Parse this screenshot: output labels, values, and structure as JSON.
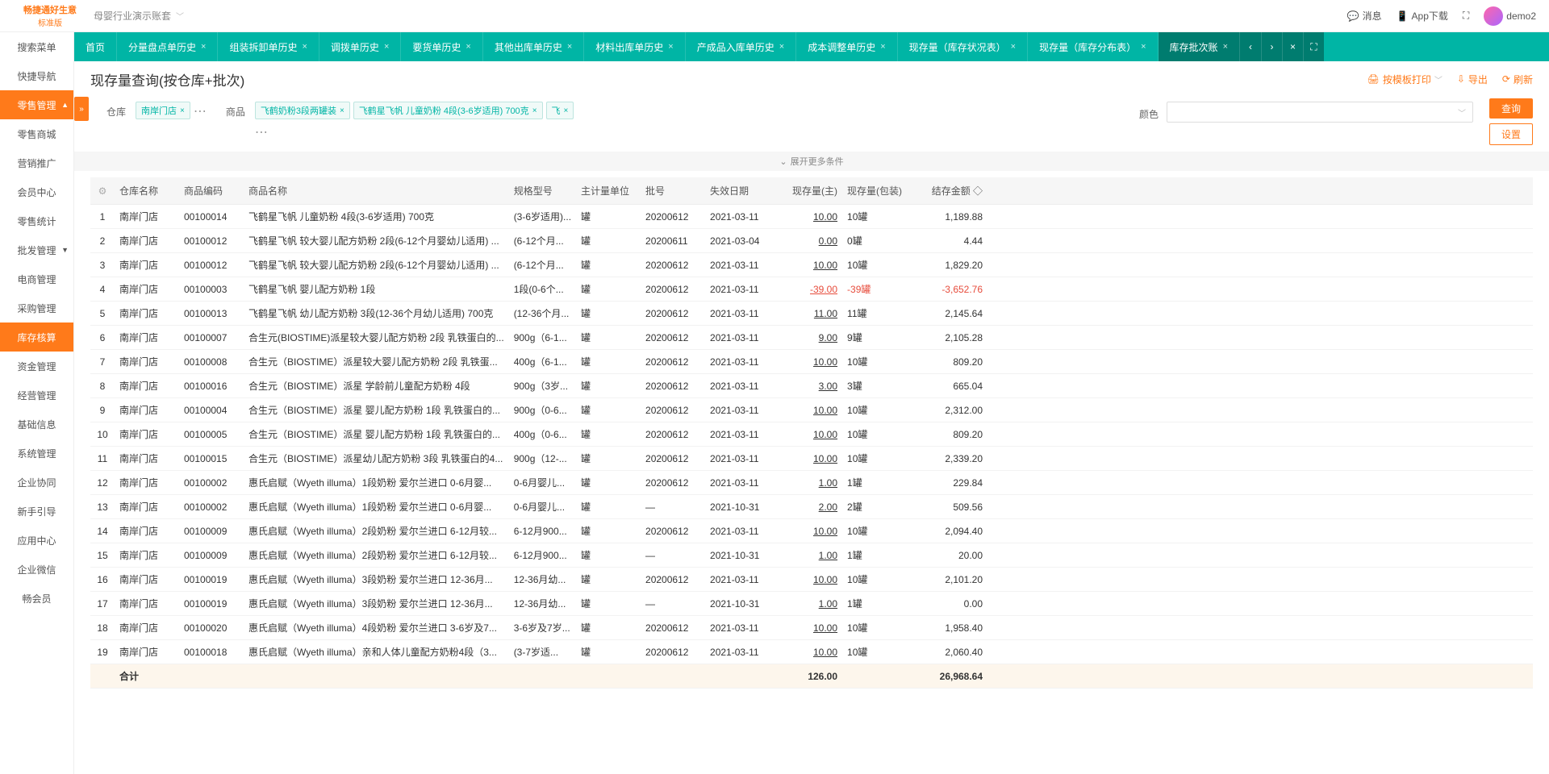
{
  "top": {
    "brand_line1": "畅捷通好生意",
    "brand_line2": "标准版",
    "account": "母婴行业演示账套",
    "msg": "消息",
    "app": "App下载",
    "user": "demo2"
  },
  "sidebar": [
    {
      "label": "搜索菜单",
      "k": "search"
    },
    {
      "label": "快捷导航",
      "k": "quick"
    },
    {
      "label": "零售管理",
      "k": "retail",
      "active": true,
      "caret": "▲"
    },
    {
      "label": "零售商城",
      "k": "mall",
      "sub": true
    },
    {
      "label": "营销推广",
      "k": "promo",
      "sub": true
    },
    {
      "label": "会员中心",
      "k": "member",
      "sub": true
    },
    {
      "label": "零售统计",
      "k": "stat",
      "sub": true
    },
    {
      "label": "批发管理",
      "k": "wholesale",
      "caret": "▼"
    },
    {
      "label": "电商管理",
      "k": "ecom"
    },
    {
      "label": "采购管理",
      "k": "purchase"
    },
    {
      "label": "库存核算",
      "k": "inv",
      "active": true
    },
    {
      "label": "资金管理",
      "k": "fund"
    },
    {
      "label": "经营管理",
      "k": "biz"
    },
    {
      "label": "基础信息",
      "k": "base"
    },
    {
      "label": "系统管理",
      "k": "sys"
    },
    {
      "label": "企业协同",
      "k": "corp"
    },
    {
      "label": "新手引导",
      "k": "guide"
    },
    {
      "label": "应用中心",
      "k": "apps"
    },
    {
      "label": "企业微信",
      "k": "wecom"
    },
    {
      "label": "畅会员",
      "k": "vip"
    }
  ],
  "tabs": [
    {
      "label": "首页",
      "closable": false
    },
    {
      "label": "分量盘点单历史",
      "closable": true
    },
    {
      "label": "组装拆卸单历史",
      "closable": true
    },
    {
      "label": "调拨单历史",
      "closable": true
    },
    {
      "label": "要货单历史",
      "closable": true
    },
    {
      "label": "其他出库单历史",
      "closable": true
    },
    {
      "label": "材料出库单历史",
      "closable": true
    },
    {
      "label": "产成品入库单历史",
      "closable": true
    },
    {
      "label": "成本调整单历史",
      "closable": true
    },
    {
      "label": "现存量（库存状况表）",
      "closable": true
    },
    {
      "label": "现存量（库存分布表）",
      "closable": true
    },
    {
      "label": "库存批次账",
      "closable": true,
      "active": true
    }
  ],
  "page": {
    "title": "现存量查询(按仓库+批次)",
    "print": "按模板打印",
    "export": "导出",
    "refresh": "刷新"
  },
  "filter": {
    "wh_label": "仓库",
    "wh_chip": "南岸门店",
    "goods_label": "商品",
    "goods_chips": [
      "飞鹤奶粉3段两罐装",
      "飞鹤星飞帆 儿童奶粉 4段(3-6岁适用) 700克",
      "飞"
    ],
    "color_label": "颜色",
    "query": "查询",
    "setting": "设置",
    "expand": "展开更多条件"
  },
  "cols": [
    "",
    "仓库名称",
    "商品编码",
    "商品名称",
    "规格型号",
    "主计量单位",
    "批号",
    "失效日期",
    "现存量(主)",
    "现存量(包装)",
    "结存金额"
  ],
  "rows": [
    {
      "i": 1,
      "wh": "南岸门店",
      "code": "00100014",
      "name": "飞鹤星飞帆 儿童奶粉 4段(3-6岁适用) 700克",
      "spec": "(3-6岁适用)...",
      "unit": "罐",
      "batch": "20200612",
      "exp": "2021-03-11",
      "qty": "10.00",
      "pkg": "10罐",
      "amt": "1,189.88"
    },
    {
      "i": 2,
      "wh": "南岸门店",
      "code": "00100012",
      "name": "飞鹤星飞帆 较大婴儿配方奶粉 2段(6-12个月婴幼儿适用) ...",
      "spec": "(6-12个月...",
      "unit": "罐",
      "batch": "20200611",
      "exp": "2021-03-04",
      "qty": "0.00",
      "pkg": "0罐",
      "amt": "4.44"
    },
    {
      "i": 3,
      "wh": "南岸门店",
      "code": "00100012",
      "name": "飞鹤星飞帆 较大婴儿配方奶粉 2段(6-12个月婴幼儿适用) ...",
      "spec": "(6-12个月...",
      "unit": "罐",
      "batch": "20200612",
      "exp": "2021-03-11",
      "qty": "10.00",
      "pkg": "10罐",
      "amt": "1,829.20"
    },
    {
      "i": 4,
      "wh": "南岸门店",
      "code": "00100003",
      "name": "飞鹤星飞帆 婴儿配方奶粉 1段",
      "spec": "1段(0-6个...",
      "unit": "罐",
      "batch": "20200612",
      "exp": "2021-03-11",
      "qty": "-39.00",
      "pkg": "-39罐",
      "amt": "-3,652.76",
      "neg": true
    },
    {
      "i": 5,
      "wh": "南岸门店",
      "code": "00100013",
      "name": "飞鹤星飞帆 幼儿配方奶粉 3段(12-36个月幼儿适用) 700克",
      "spec": "(12-36个月...",
      "unit": "罐",
      "batch": "20200612",
      "exp": "2021-03-11",
      "qty": "11.00",
      "pkg": "11罐",
      "amt": "2,145.64"
    },
    {
      "i": 6,
      "wh": "南岸门店",
      "code": "00100007",
      "name": "合生元(BIOSTIME)派星较大婴儿配方奶粉 2段 乳铁蛋白的...",
      "spec": "900g（6-1...",
      "unit": "罐",
      "batch": "20200612",
      "exp": "2021-03-11",
      "qty": "9.00",
      "pkg": "9罐",
      "amt": "2,105.28"
    },
    {
      "i": 7,
      "wh": "南岸门店",
      "code": "00100008",
      "name": "合生元（BIOSTIME）派星较大婴儿配方奶粉 2段 乳铁蛋...",
      "spec": "400g（6-1...",
      "unit": "罐",
      "batch": "20200612",
      "exp": "2021-03-11",
      "qty": "10.00",
      "pkg": "10罐",
      "amt": "809.20"
    },
    {
      "i": 8,
      "wh": "南岸门店",
      "code": "00100016",
      "name": "合生元（BIOSTIME）派星 学龄前儿童配方奶粉 4段",
      "spec": "900g（3岁...",
      "unit": "罐",
      "batch": "20200612",
      "exp": "2021-03-11",
      "qty": "3.00",
      "pkg": "3罐",
      "amt": "665.04"
    },
    {
      "i": 9,
      "wh": "南岸门店",
      "code": "00100004",
      "name": "合生元（BIOSTIME）派星 婴儿配方奶粉 1段 乳铁蛋白的...",
      "spec": "900g（0-6...",
      "unit": "罐",
      "batch": "20200612",
      "exp": "2021-03-11",
      "qty": "10.00",
      "pkg": "10罐",
      "amt": "2,312.00"
    },
    {
      "i": 10,
      "wh": "南岸门店",
      "code": "00100005",
      "name": "合生元（BIOSTIME）派星 婴儿配方奶粉 1段 乳铁蛋白的...",
      "spec": "400g（0-6...",
      "unit": "罐",
      "batch": "20200612",
      "exp": "2021-03-11",
      "qty": "10.00",
      "pkg": "10罐",
      "amt": "809.20"
    },
    {
      "i": 11,
      "wh": "南岸门店",
      "code": "00100015",
      "name": "合生元（BIOSTIME）派星幼儿配方奶粉 3段 乳铁蛋白的4...",
      "spec": "900g（12-...",
      "unit": "罐",
      "batch": "20200612",
      "exp": "2021-03-11",
      "qty": "10.00",
      "pkg": "10罐",
      "amt": "2,339.20"
    },
    {
      "i": 12,
      "wh": "南岸门店",
      "code": "00100002",
      "name": "惠氏启赋（Wyeth illuma）1段奶粉 爱尔兰进口 0-6月婴...",
      "spec": "0-6月婴儿...",
      "unit": "罐",
      "batch": "20200612",
      "exp": "2021-03-11",
      "qty": "1.00",
      "pkg": "1罐",
      "amt": "229.84"
    },
    {
      "i": 13,
      "wh": "南岸门店",
      "code": "00100002",
      "name": "惠氏启赋（Wyeth illuma）1段奶粉 爱尔兰进口 0-6月婴...",
      "spec": "0-6月婴儿...",
      "unit": "罐",
      "batch": "—",
      "exp": "2021-10-31",
      "qty": "2.00",
      "pkg": "2罐",
      "amt": "509.56"
    },
    {
      "i": 14,
      "wh": "南岸门店",
      "code": "00100009",
      "name": "惠氏启赋（Wyeth illuma）2段奶粉 爱尔兰进口 6-12月较...",
      "spec": "6-12月900...",
      "unit": "罐",
      "batch": "20200612",
      "exp": "2021-03-11",
      "qty": "10.00",
      "pkg": "10罐",
      "amt": "2,094.40"
    },
    {
      "i": 15,
      "wh": "南岸门店",
      "code": "00100009",
      "name": "惠氏启赋（Wyeth illuma）2段奶粉 爱尔兰进口 6-12月较...",
      "spec": "6-12月900...",
      "unit": "罐",
      "batch": "—",
      "exp": "2021-10-31",
      "qty": "1.00",
      "pkg": "1罐",
      "amt": "20.00"
    },
    {
      "i": 16,
      "wh": "南岸门店",
      "code": "00100019",
      "name": "惠氏启赋（Wyeth illuma）3段奶粉 爱尔兰进口 12-36月...",
      "spec": "12-36月幼...",
      "unit": "罐",
      "batch": "20200612",
      "exp": "2021-03-11",
      "qty": "10.00",
      "pkg": "10罐",
      "amt": "2,101.20"
    },
    {
      "i": 17,
      "wh": "南岸门店",
      "code": "00100019",
      "name": "惠氏启赋（Wyeth illuma）3段奶粉 爱尔兰进口 12-36月...",
      "spec": "12-36月幼...",
      "unit": "罐",
      "batch": "—",
      "exp": "2021-10-31",
      "qty": "1.00",
      "pkg": "1罐",
      "amt": "0.00"
    },
    {
      "i": 18,
      "wh": "南岸门店",
      "code": "00100020",
      "name": "惠氏启赋（Wyeth illuma）4段奶粉 爱尔兰进口 3-6岁及7...",
      "spec": "3-6岁及7岁...",
      "unit": "罐",
      "batch": "20200612",
      "exp": "2021-03-11",
      "qty": "10.00",
      "pkg": "10罐",
      "amt": "1,958.40"
    },
    {
      "i": 19,
      "wh": "南岸门店",
      "code": "00100018",
      "name": "惠氏启赋（Wyeth illuma）亲和人体儿童配方奶粉4段（3...",
      "spec": "(3-7岁适...",
      "unit": "罐",
      "batch": "20200612",
      "exp": "2021-03-11",
      "qty": "10.00",
      "pkg": "10罐",
      "amt": "2,060.40"
    }
  ],
  "total": {
    "label": "合计",
    "qty": "126.00",
    "amt": "26,968.64"
  }
}
